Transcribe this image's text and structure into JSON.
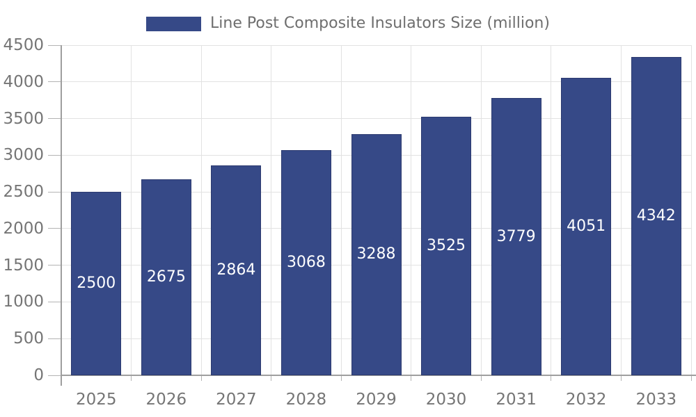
{
  "chart_data": {
    "type": "bar",
    "title": "Line Post Composite Insulators Size (million)",
    "legend": {
      "label": "Line Post Composite Insulators Size (million)",
      "position": "top-center"
    },
    "categories": [
      "2025",
      "2026",
      "2027",
      "2028",
      "2029",
      "2030",
      "2031",
      "2032",
      "2033"
    ],
    "series": [
      {
        "name": "Line Post Composite Insulators Size (million)",
        "values": [
          2500,
          2675,
          2864,
          3068,
          3288,
          3525,
          3779,
          4051,
          4342
        ]
      }
    ],
    "value_labels": [
      2500,
      2675,
      2864,
      3068,
      3288,
      3525,
      3779,
      4051,
      4342
    ],
    "value_label_position": "inside-center",
    "xlabel": "",
    "ylabel": "",
    "ylim": [
      0,
      4500
    ],
    "yticks": [
      0,
      500,
      1000,
      1500,
      2000,
      2500,
      3000,
      3500,
      4000,
      4500
    ],
    "grid": true,
    "colors": {
      "bar": "#364987",
      "bar_border": "#2c3a6f",
      "value_label": "#ffffff",
      "legend_text": "#6e6e6e",
      "tick_label": "#757575",
      "gridline": "#e2e2e2",
      "axis_line": "#9e9e9e",
      "tick_mark": "#b3b3b3",
      "background": "#ffffff"
    }
  }
}
